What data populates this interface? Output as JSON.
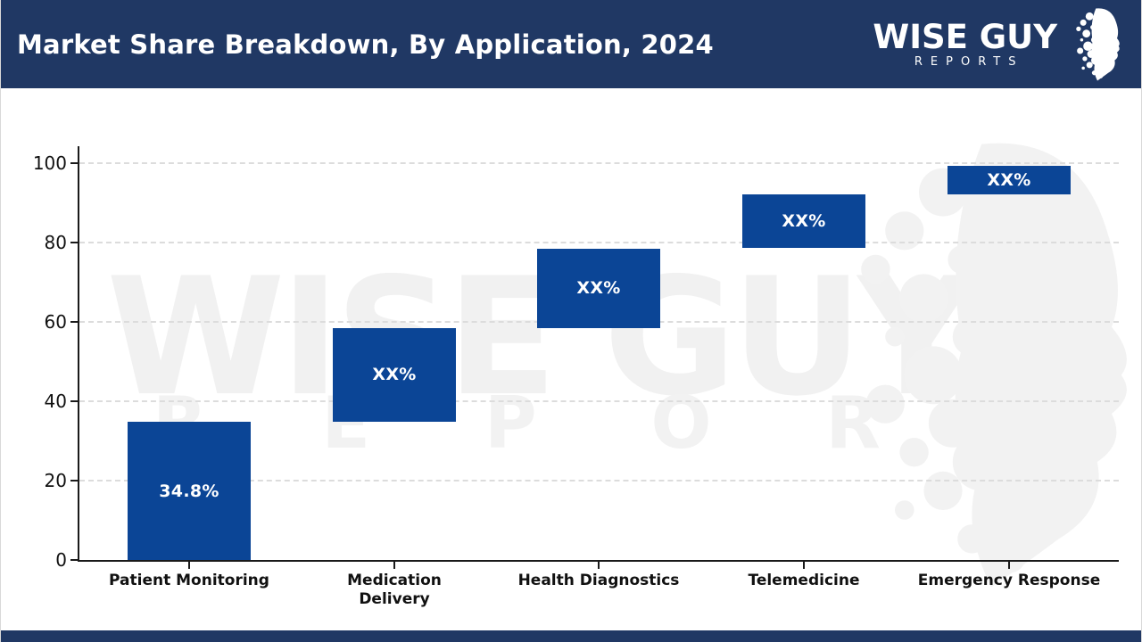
{
  "header": {
    "title": "Market Share Breakdown, By Application, 2024",
    "background": "#203864",
    "logo": {
      "line1": "WISE GUY",
      "line2": "REPORTS"
    }
  },
  "watermark": {
    "line1": "WISE GUY",
    "line2": "R E P O R T S"
  },
  "footer": {
    "background": "#203864"
  },
  "chart_data": {
    "type": "bar",
    "variant": "waterfall",
    "title": "Market Share Breakdown, By Application, 2024",
    "categories": [
      "Patient Monitoring",
      "Medication\nDelivery",
      "Health Diagnostics",
      "Telemedicine",
      "Emergency Response"
    ],
    "bars": [
      {
        "category": "Patient Monitoring",
        "start": 0,
        "end": 34.8,
        "label": "34.8%"
      },
      {
        "category": "Medication Delivery",
        "start": 34.8,
        "end": 58.5,
        "label": "XX%"
      },
      {
        "category": "Health Diagnostics",
        "start": 58.5,
        "end": 78.5,
        "label": "XX%"
      },
      {
        "category": "Telemedicine",
        "start": 78.6,
        "end": 92.1,
        "label": "XX%"
      },
      {
        "category": "Emergency Response",
        "start": 92.1,
        "end": 99.4,
        "label": "XX%"
      }
    ],
    "y_ticks": [
      0,
      20,
      40,
      60,
      80,
      100
    ],
    "ylim": [
      0,
      104
    ],
    "xlabel": "",
    "ylabel": "",
    "grid": {
      "axis": "y",
      "style": "dashed",
      "color": "#dcdcdc"
    },
    "legend": "none",
    "bar_color": "#0B4596",
    "bar_label_color": "#ffffff"
  }
}
